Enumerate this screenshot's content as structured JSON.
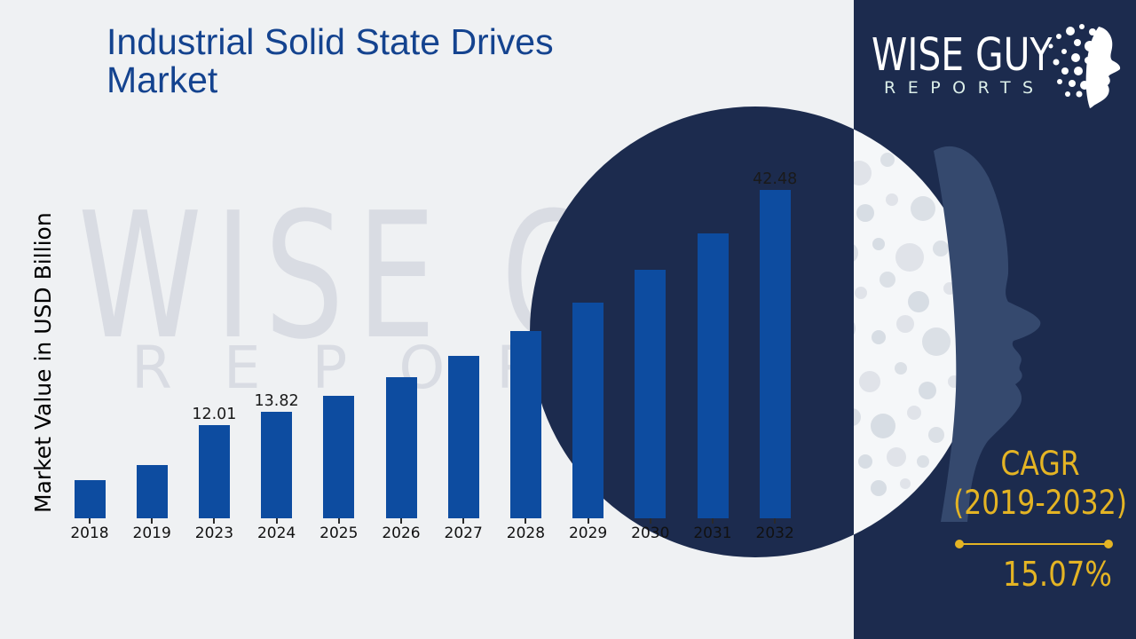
{
  "title": {
    "line1": "Industrial Solid State Drives",
    "line2": "Market"
  },
  "y_axis_label": "Market Value in USD Billion",
  "watermark": {
    "line1": "WISE GUY",
    "line2": "REPORTS"
  },
  "logo": {
    "line1": "WISE GUY",
    "line2": "REPORTS"
  },
  "cagr": {
    "heading": "CAGR",
    "range": "(2019-2032)",
    "value": "15.07%"
  },
  "colors": {
    "bar": "#0d4ca0",
    "title_blue": "#14438f",
    "panel_navy": "#1c2b4e",
    "accent_gold": "#e4b424",
    "watermark_gray": "#d9dce3",
    "background": "#eff1f3"
  },
  "chart_data": {
    "type": "bar",
    "title": "Industrial Solid State Drives Market",
    "xlabel": "",
    "ylabel": "Market Value in USD Billion",
    "unit": "USD Billion",
    "legend": null,
    "grid": false,
    "ylim": [
      0,
      46
    ],
    "categories": [
      "2018",
      "2019",
      "2023",
      "2024",
      "2025",
      "2026",
      "2027",
      "2028",
      "2029",
      "2030",
      "2031",
      "2032"
    ],
    "values": [
      4.9,
      6.85,
      12.01,
      13.82,
      15.9,
      18.3,
      21.05,
      24.25,
      27.9,
      32.1,
      36.9,
      42.48
    ],
    "points": [
      {
        "year": "2018",
        "value": 4.9,
        "label": ""
      },
      {
        "year": "2019",
        "value": 6.85,
        "label": ""
      },
      {
        "year": "2023",
        "value": 12.01,
        "label": "12.01"
      },
      {
        "year": "2024",
        "value": 13.82,
        "label": "13.82"
      },
      {
        "year": "2025",
        "value": 15.9,
        "label": ""
      },
      {
        "year": "2026",
        "value": 18.3,
        "label": ""
      },
      {
        "year": "2027",
        "value": 21.05,
        "label": ""
      },
      {
        "year": "2028",
        "value": 24.25,
        "label": ""
      },
      {
        "year": "2029",
        "value": 27.9,
        "label": ""
      },
      {
        "year": "2030",
        "value": 32.1,
        "label": ""
      },
      {
        "year": "2031",
        "value": 36.9,
        "label": ""
      },
      {
        "year": "2032",
        "value": 42.48,
        "label": "42.48"
      }
    ]
  }
}
